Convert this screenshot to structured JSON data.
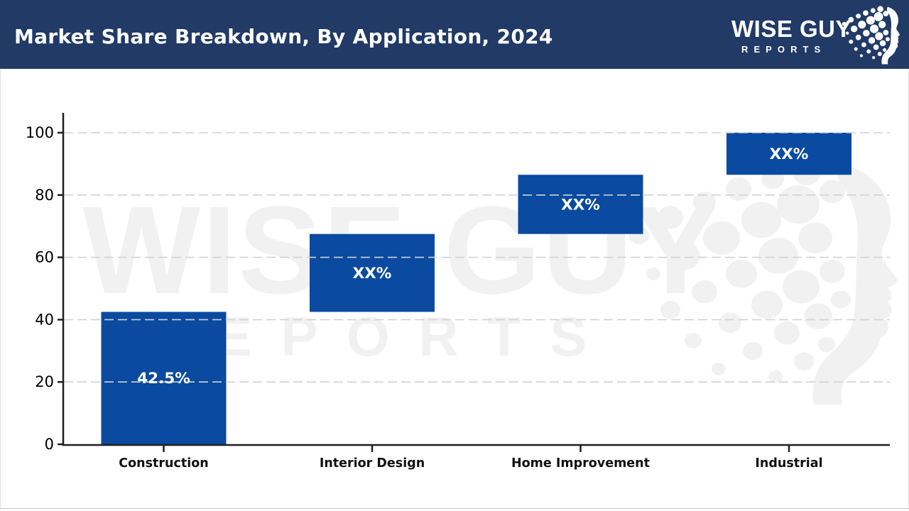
{
  "header": {
    "title": "Market Share Breakdown, By Application, 2024",
    "logo": {
      "line1": "WISE GUY",
      "line2": "REPORTS"
    }
  },
  "watermark": {
    "line1": "WISE GUY",
    "line2": "REPORTS"
  },
  "chart_data": {
    "type": "bar",
    "subtype": "floating-waterfall",
    "title": "Market Share Breakdown, By Application, 2024",
    "xlabel": "",
    "ylabel": "",
    "categories": [
      "Construction",
      "Interior Design",
      "Home Improvement",
      "Industrial"
    ],
    "segments": [
      {
        "category": "Construction",
        "start": 0,
        "end": 42.5,
        "label": "42.5%"
      },
      {
        "category": "Interior Design",
        "start": 42.5,
        "end": 67.5,
        "label": "XX%"
      },
      {
        "category": "Home Improvement",
        "start": 67.5,
        "end": 86.5,
        "label": "XX%"
      },
      {
        "category": "Industrial",
        "start": 86.5,
        "end": 100,
        "label": "XX%"
      }
    ],
    "ylim": [
      0,
      100
    ],
    "yticks": [
      0,
      20,
      40,
      60,
      80,
      100
    ],
    "grid": "horizontal-dashed",
    "legend": null,
    "bar_color": "#0a4aa0",
    "label_color": "#ffffff"
  },
  "colors": {
    "header_bg": "#213a66",
    "bar": "#0a4aa0",
    "grid": "#d2d2d2",
    "axis": "#1f1f1f",
    "watermark": "#f1f1f2"
  }
}
